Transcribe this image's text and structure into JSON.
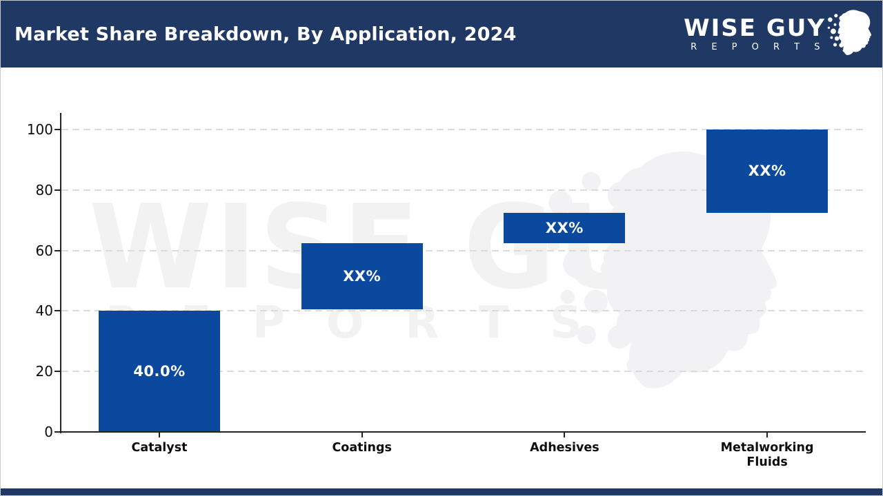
{
  "header": {
    "title": "Market Share Breakdown, By Application, 2024",
    "bg_color": "#203864",
    "logo": {
      "line1": "WISE GUY",
      "line2": "R E P O R T S"
    }
  },
  "watermark": {
    "line1": "WISE GUY",
    "line2": "REPORTS"
  },
  "footer": {
    "bg_color": "#203864"
  },
  "chart_data": {
    "type": "bar",
    "subtype": "waterfall",
    "title": "Market Share Breakdown, By Application, 2024",
    "categories": [
      "Catalyst",
      "Coatings",
      "Adhesives",
      "Metalworking Fluids"
    ],
    "segments": [
      {
        "category": "Catalyst",
        "start": 0,
        "end": 40,
        "label": "40.0%"
      },
      {
        "category": "Coatings",
        "start": 40.5,
        "end": 62.5,
        "label": "XX%"
      },
      {
        "category": "Adhesives",
        "start": 62.5,
        "end": 72.5,
        "label": "XX%"
      },
      {
        "category": "Metalworking Fluids",
        "start": 72.5,
        "end": 100,
        "label": "XX%"
      }
    ],
    "bar_color": "#0a499e",
    "bar_label_color": "#ffffff",
    "yticks": [
      0,
      20,
      40,
      60,
      80,
      100
    ],
    "ylim": [
      0,
      105.5
    ],
    "grid": true,
    "legend": null
  }
}
